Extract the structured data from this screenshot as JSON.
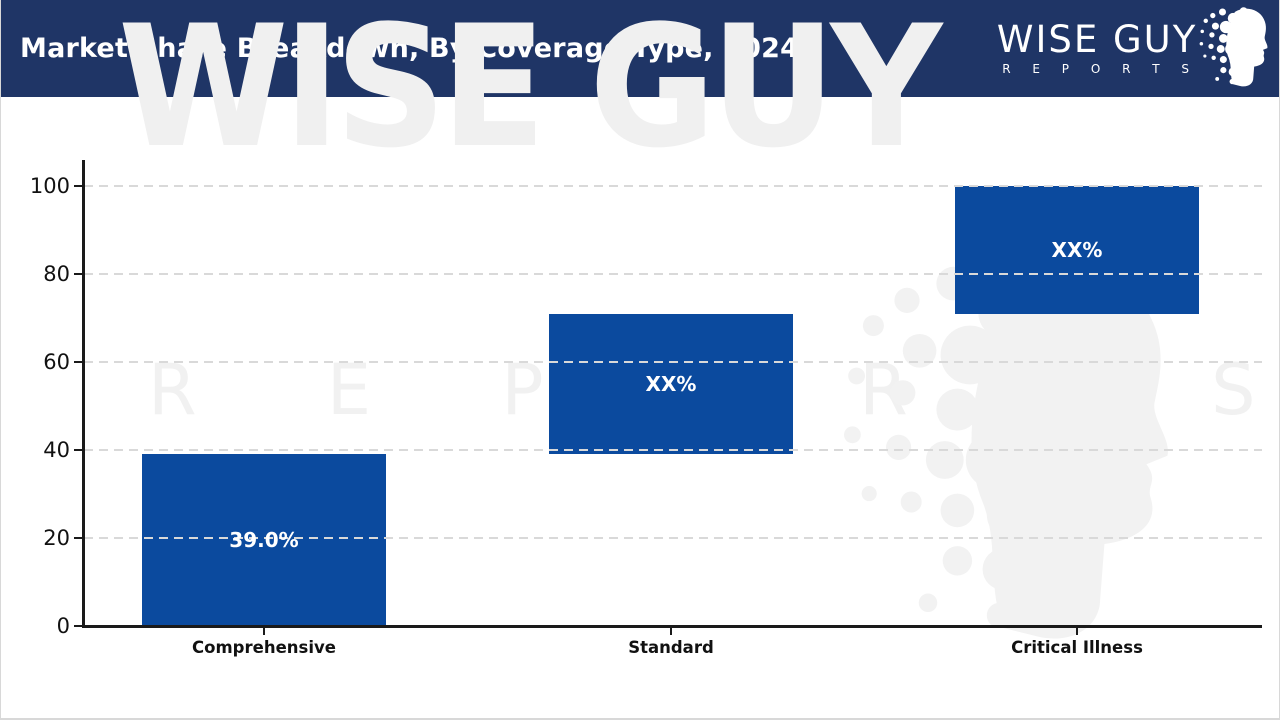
{
  "header": {
    "title": "Market Share Breakdown, By Coverage Type, 2024",
    "bg_color": "#1f3566",
    "logo": {
      "line1": "WISE GUY",
      "line2": "R E P O R T S"
    }
  },
  "watermark": {
    "line1": "WISE GUY",
    "line2": "R E P O R T S"
  },
  "chart_data": {
    "type": "bar",
    "subtype": "waterfall",
    "title": "Market Share Breakdown, By Coverage Type, 2024",
    "xlabel": "",
    "ylabel": "",
    "categories": [
      "Comprehensive",
      "Standard",
      "Critical Illness"
    ],
    "segments": [
      {
        "category": "Comprehensive",
        "start": 0,
        "end": 39,
        "value": 39,
        "label": "39.0%"
      },
      {
        "category": "Standard",
        "start": 39,
        "end": 71,
        "value": 32,
        "label": "XX%"
      },
      {
        "category": "Critical Illness",
        "start": 71,
        "end": 100,
        "value": 29,
        "label": "XX%"
      }
    ],
    "yticks": [
      0,
      20,
      40,
      60,
      80,
      100
    ],
    "ylim": [
      0,
      105
    ],
    "grid": "horizontal dashed",
    "legend": "none",
    "bar_color": "#0b4a9e",
    "bar_label_color": "#ffffff",
    "axis_color": "#1a1a1a",
    "grid_color": "#d9d9d9"
  }
}
